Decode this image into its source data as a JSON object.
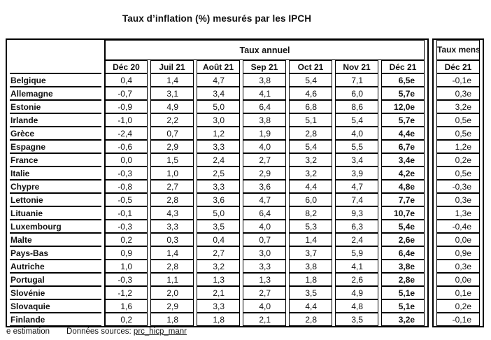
{
  "chart_data": {
    "type": "table",
    "title": "Taux d’inflation (%) mesurés par les IPCH",
    "unit": "%",
    "col_groups": {
      "annual": "Taux annuel",
      "monthly": "Taux mensuel"
    },
    "annual_columns": [
      "Déc 20",
      "Juil 21",
      "Août 21",
      "Sep 21",
      "Oct 21",
      "Nov 21",
      "Déc 21"
    ],
    "monthly_column": "Déc 21",
    "rows": [
      {
        "country": "Belgique",
        "annual": [
          "0,4",
          "1,4",
          "4,7",
          "3,8",
          "5,4",
          "7,1",
          "6,5e"
        ],
        "monthly": "-0,1e"
      },
      {
        "country": "Allemagne",
        "annual": [
          "-0,7",
          "3,1",
          "3,4",
          "4,1",
          "4,6",
          "6,0",
          "5,7e"
        ],
        "monthly": "0,3e"
      },
      {
        "country": "Estonie",
        "annual": [
          "-0,9",
          "4,9",
          "5,0",
          "6,4",
          "6,8",
          "8,6",
          "12,0e"
        ],
        "monthly": "3,2e"
      },
      {
        "country": "Irlande",
        "annual": [
          "-1,0",
          "2,2",
          "3,0",
          "3,8",
          "5,1",
          "5,4",
          "5,7e"
        ],
        "monthly": "0,5e"
      },
      {
        "country": "Grèce",
        "annual": [
          "-2,4",
          "0,7",
          "1,2",
          "1,9",
          "2,8",
          "4,0",
          "4,4e"
        ],
        "monthly": "0,5e"
      },
      {
        "country": "Espagne",
        "annual": [
          "-0,6",
          "2,9",
          "3,3",
          "4,0",
          "5,4",
          "5,5",
          "6,7e"
        ],
        "monthly": "1,2e"
      },
      {
        "country": "France",
        "annual": [
          "0,0",
          "1,5",
          "2,4",
          "2,7",
          "3,2",
          "3,4",
          "3,4e"
        ],
        "monthly": "0,2e"
      },
      {
        "country": "Italie",
        "annual": [
          "-0,3",
          "1,0",
          "2,5",
          "2,9",
          "3,2",
          "3,9",
          "4,2e"
        ],
        "monthly": "0,5e"
      },
      {
        "country": "Chypre",
        "annual": [
          "-0,8",
          "2,7",
          "3,3",
          "3,6",
          "4,4",
          "4,7",
          "4,8e"
        ],
        "monthly": "-0,3e"
      },
      {
        "country": "Lettonie",
        "annual": [
          "-0,5",
          "2,8",
          "3,6",
          "4,7",
          "6,0",
          "7,4",
          "7,7e"
        ],
        "monthly": "0,3e"
      },
      {
        "country": "Lituanie",
        "annual": [
          "-0,1",
          "4,3",
          "5,0",
          "6,4",
          "8,2",
          "9,3",
          "10,7e"
        ],
        "monthly": "1,3e"
      },
      {
        "country": "Luxembourg",
        "annual": [
          "-0,3",
          "3,3",
          "3,5",
          "4,0",
          "5,3",
          "6,3",
          "5,4e"
        ],
        "monthly": "-0,4e"
      },
      {
        "country": "Malte",
        "annual": [
          "0,2",
          "0,3",
          "0,4",
          "0,7",
          "1,4",
          "2,4",
          "2,6e"
        ],
        "monthly": "0,0e"
      },
      {
        "country": "Pays-Bas",
        "annual": [
          "0,9",
          "1,4",
          "2,7",
          "3,0",
          "3,7",
          "5,9",
          "6,4e"
        ],
        "monthly": "0,9e"
      },
      {
        "country": "Autriche",
        "annual": [
          "1,0",
          "2,8",
          "3,2",
          "3,3",
          "3,8",
          "4,1",
          "3,8e"
        ],
        "monthly": "0,3e"
      },
      {
        "country": "Portugal",
        "annual": [
          "-0,3",
          "1,1",
          "1,3",
          "1,3",
          "1,8",
          "2,6",
          "2,8e"
        ],
        "monthly": "0,0e"
      },
      {
        "country": "Slovénie",
        "annual": [
          "-1,2",
          "2,0",
          "2,1",
          "2,7",
          "3,5",
          "4,9",
          "5,1e"
        ],
        "monthly": "0,1e"
      },
      {
        "country": "Slovaquie",
        "annual": [
          "1,6",
          "2,9",
          "3,3",
          "4,0",
          "4,4",
          "4,8",
          "5,1e"
        ],
        "monthly": "0,2e"
      },
      {
        "country": "Finlande",
        "annual": [
          "0,2",
          "1,8",
          "1,8",
          "2,1",
          "2,8",
          "3,5",
          "3,2e"
        ],
        "monthly": "-0,1e"
      }
    ]
  },
  "footer": {
    "estimation_note": "e estimation",
    "sources_label": "Données sources:",
    "sources_link": "prc_hicp_manr"
  }
}
